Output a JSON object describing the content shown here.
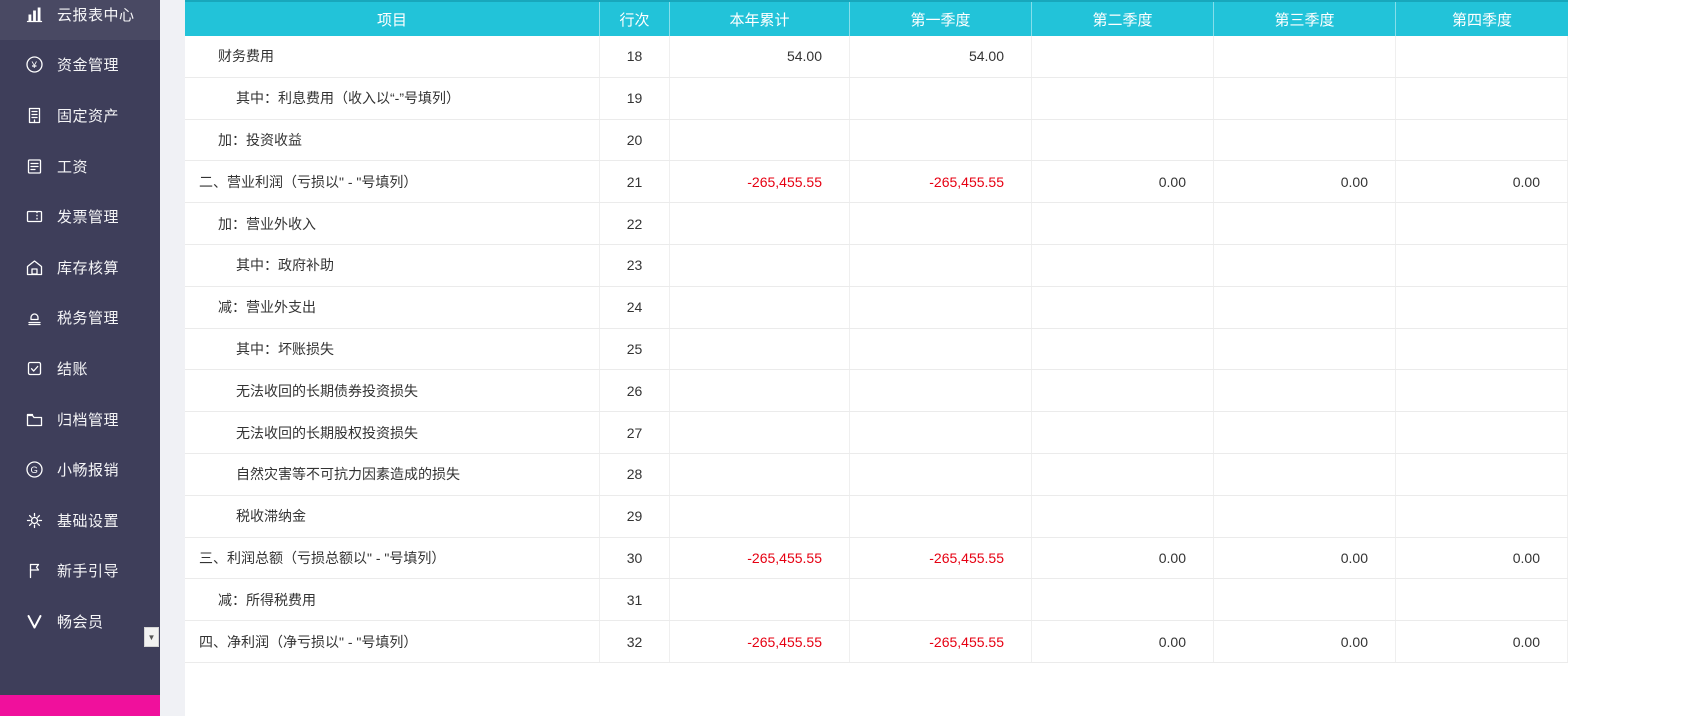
{
  "colors": {
    "header_bg": "#22c3d9",
    "sidebar_bg": "#3e3e5a",
    "negative_value": "#e60012",
    "highlight_pink": "#f0109c"
  },
  "sidebar": {
    "scroll_down_glyph": "▼",
    "items": [
      {
        "label": "云报表中心",
        "icon": "chart-icon"
      },
      {
        "label": "资金管理",
        "icon": "money-icon"
      },
      {
        "label": "固定资产",
        "icon": "assets-icon"
      },
      {
        "label": "工资",
        "icon": "salary-icon"
      },
      {
        "label": "发票管理",
        "icon": "invoice-icon"
      },
      {
        "label": "库存核算",
        "icon": "inventory-icon"
      },
      {
        "label": "税务管理",
        "icon": "tax-icon"
      },
      {
        "label": "结账",
        "icon": "closing-icon"
      },
      {
        "label": "归档管理",
        "icon": "archive-icon"
      },
      {
        "label": "小畅报销",
        "icon": "reimburse-icon"
      },
      {
        "label": "基础设置",
        "icon": "settings-icon"
      },
      {
        "label": "新手引导",
        "icon": "guide-icon"
      },
      {
        "label": "畅会员",
        "icon": "member-icon"
      }
    ]
  },
  "table": {
    "columns": [
      "项目",
      "行次",
      "本年累计",
      "第一季度",
      "第二季度",
      "第三季度",
      "第四季度"
    ],
    "rows": [
      {
        "name": "财务费用",
        "indent": 1,
        "line": "18",
        "ytd": "54.00",
        "q1": "54.00",
        "q2": "",
        "q3": "",
        "q4": ""
      },
      {
        "name": "其中：利息费用（收入以“-”号填列）",
        "indent": 2,
        "line": "19",
        "ytd": "",
        "q1": "",
        "q2": "",
        "q3": "",
        "q4": ""
      },
      {
        "name": "加：投资收益",
        "indent": 1,
        "line": "20",
        "ytd": "",
        "q1": "",
        "q2": "",
        "q3": "",
        "q4": ""
      },
      {
        "name": "二、营业利润（亏损以\" - \"号填列）",
        "indent": 0,
        "line": "21",
        "ytd": "-265,455.55",
        "q1": "-265,455.55",
        "q2": "0.00",
        "q3": "0.00",
        "q4": "0.00"
      },
      {
        "name": "加：营业外收入",
        "indent": 1,
        "line": "22",
        "ytd": "",
        "q1": "",
        "q2": "",
        "q3": "",
        "q4": ""
      },
      {
        "name": "其中：政府补助",
        "indent": 2,
        "line": "23",
        "ytd": "",
        "q1": "",
        "q2": "",
        "q3": "",
        "q4": ""
      },
      {
        "name": "减：营业外支出",
        "indent": 1,
        "line": "24",
        "ytd": "",
        "q1": "",
        "q2": "",
        "q3": "",
        "q4": ""
      },
      {
        "name": "其中：坏账损失",
        "indent": 2,
        "line": "25",
        "ytd": "",
        "q1": "",
        "q2": "",
        "q3": "",
        "q4": ""
      },
      {
        "name": "无法收回的长期债券投资损失",
        "indent": 2,
        "line": "26",
        "ytd": "",
        "q1": "",
        "q2": "",
        "q3": "",
        "q4": ""
      },
      {
        "name": "无法收回的长期股权投资损失",
        "indent": 2,
        "line": "27",
        "ytd": "",
        "q1": "",
        "q2": "",
        "q3": "",
        "q4": ""
      },
      {
        "name": "自然灾害等不可抗力因素造成的损失",
        "indent": 2,
        "line": "28",
        "ytd": "",
        "q1": "",
        "q2": "",
        "q3": "",
        "q4": ""
      },
      {
        "name": "税收滞纳金",
        "indent": 2,
        "line": "29",
        "ytd": "",
        "q1": "",
        "q2": "",
        "q3": "",
        "q4": ""
      },
      {
        "name": "三、利润总额（亏损总额以\" - \"号填列）",
        "indent": 0,
        "line": "30",
        "ytd": "-265,455.55",
        "q1": "-265,455.55",
        "q2": "0.00",
        "q3": "0.00",
        "q4": "0.00"
      },
      {
        "name": "减：所得税费用",
        "indent": 1,
        "line": "31",
        "ytd": "",
        "q1": "",
        "q2": "",
        "q3": "",
        "q4": ""
      },
      {
        "name": "四、净利润（净亏损以\" - \"号填列）",
        "indent": 0,
        "line": "32",
        "ytd": "-265,455.55",
        "q1": "-265,455.55",
        "q2": "0.00",
        "q3": "0.00",
        "q4": "0.00"
      }
    ]
  }
}
